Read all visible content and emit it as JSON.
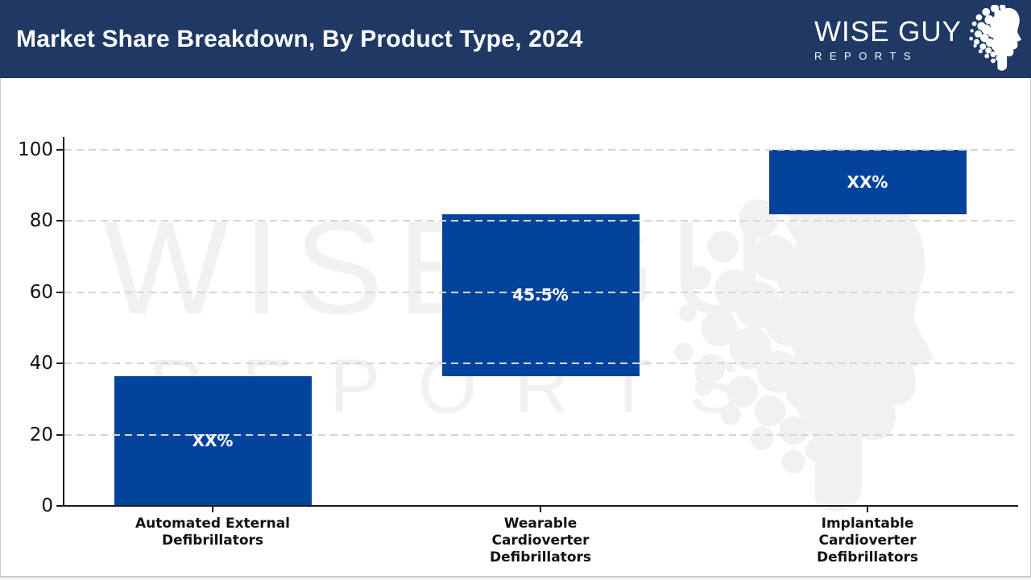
{
  "header": {
    "title": "Market Share Breakdown, By Product Type, 2024",
    "bg_color": "#1f3864",
    "logo": {
      "line1": "WISE GUY",
      "line2": "REPORTS"
    }
  },
  "watermark": {
    "line1": "WISE GUY",
    "line2": "REPORTS"
  },
  "chart_data": {
    "type": "bar",
    "subtype": "floating-stacked-percentage",
    "title": "Market Share Breakdown, By Product Type, 2024",
    "categories": [
      "Automated External Defibrillators",
      "Wearable Cardioverter Defibrillators",
      "Implantable Cardioverter Defibrillators"
    ],
    "category_lines": [
      [
        "Automated External",
        "Defibrillators"
      ],
      [
        "Wearable",
        "Cardioverter",
        "Defibrillators"
      ],
      [
        "Implantable",
        "Cardioverter",
        "Defibrillators"
      ]
    ],
    "bars": [
      {
        "start": 0,
        "end": 36.4,
        "label": "XX%"
      },
      {
        "start": 36.4,
        "end": 81.9,
        "label": "45.5%"
      },
      {
        "start": 81.9,
        "end": 100,
        "label": "XX%"
      }
    ],
    "segment_values": [
      36.4,
      45.5,
      18.1
    ],
    "xlabel": "",
    "ylabel": "",
    "ylim": [
      0,
      100
    ],
    "yticks": [
      0,
      20,
      40,
      60,
      80,
      100
    ],
    "grid": "horizontal-dashed-over-bars",
    "legend": "none",
    "bar_color": "#04439c",
    "bar_label_color": "#ffffff",
    "axis_color": "#1a1a1a",
    "grid_color": "#d5d5d5",
    "watermark_color": "#f1f1f1"
  }
}
